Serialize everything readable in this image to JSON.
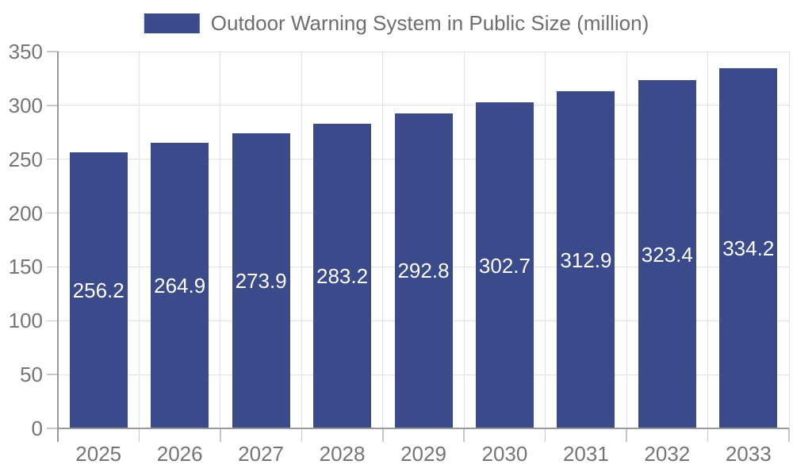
{
  "legend": {
    "label": "Outdoor Warning System in Public Size (million)"
  },
  "chart_data": {
    "type": "bar",
    "title": "Outdoor Warning System in Public Size (million)",
    "categories": [
      "2025",
      "2026",
      "2027",
      "2028",
      "2029",
      "2030",
      "2031",
      "2032",
      "2033"
    ],
    "values": [
      256.2,
      264.9,
      273.9,
      283.2,
      292.8,
      302.7,
      312.9,
      323.4,
      334.2
    ],
    "series_name": "Outdoor Warning System in Public Size (million)",
    "xlabel": "",
    "ylabel": "",
    "ylim": [
      0,
      350
    ],
    "yticks": [
      0,
      50,
      100,
      150,
      200,
      250,
      300,
      350
    ],
    "grid": true,
    "legend_position": "top-center",
    "bar_labels_inside": true,
    "colors": {
      "bar": "#3A4A8A",
      "bar_label": "#FFFFFF",
      "axis": "#999999",
      "tick": "#C6C6CD",
      "grid": "#E1E1E7",
      "tick_text": "#757575",
      "legend_text": "#6E6E6E",
      "background": "#FFFFFF"
    }
  }
}
